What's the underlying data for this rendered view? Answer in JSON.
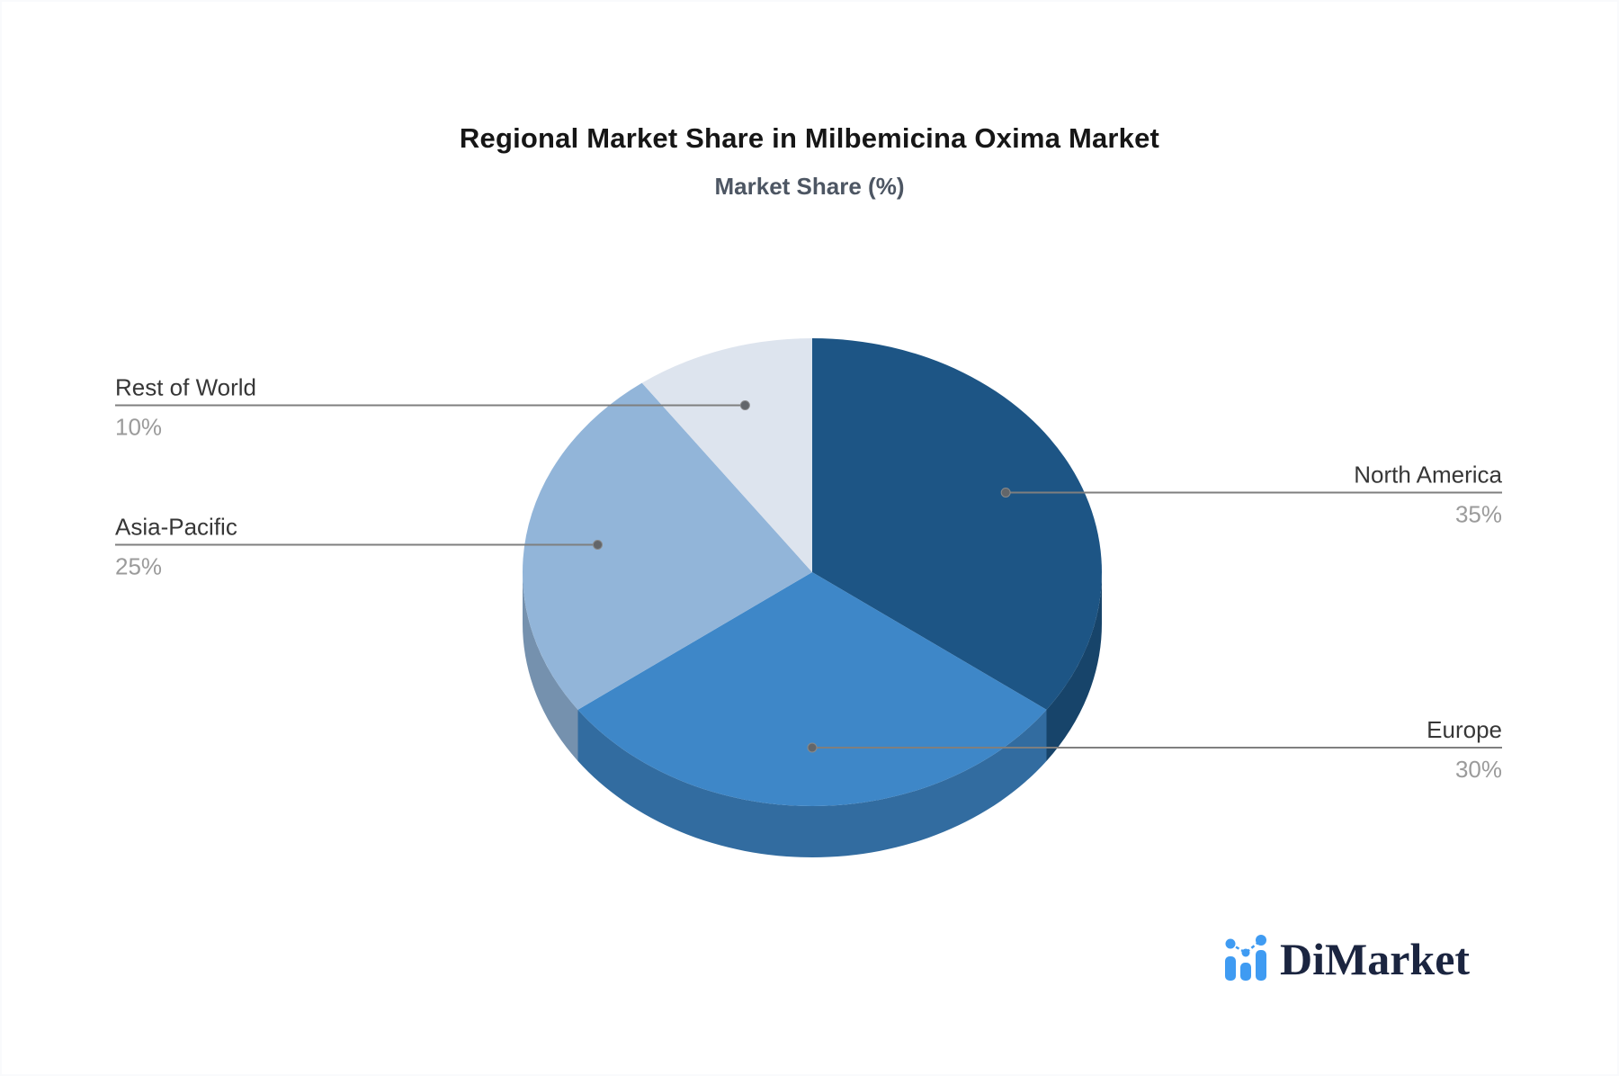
{
  "header": {
    "title": "Regional Market Share in Milbemicina Oxima Market",
    "subtitle": "Market Share (%)"
  },
  "chart_data": {
    "type": "pie",
    "style": "3d-pie",
    "title": "Regional Market Share in Milbemicina Oxima Market",
    "subtitle": "Market Share (%)",
    "unit": "%",
    "start_angle_deg": 0,
    "direction": "clockwise",
    "labels": [
      "North America",
      "Europe",
      "Asia-Pacific",
      "Rest of World"
    ],
    "values": [
      35,
      30,
      25,
      10
    ],
    "colors": [
      "#1d5585",
      "#3e87c8",
      "#92b5d9",
      "#dde4ee"
    ],
    "legend_position": "callout-labels"
  },
  "callouts": [
    {
      "name": "North America",
      "pct": "35%",
      "side": "right"
    },
    {
      "name": "Europe",
      "pct": "30%",
      "side": "right"
    },
    {
      "name": "Asia-Pacific",
      "pct": "25%",
      "side": "left"
    },
    {
      "name": "Rest of World",
      "pct": "10%",
      "side": "left"
    }
  ],
  "ui_colors": {
    "title": "#161616",
    "subtitle": "#4d5663",
    "label_text": "#373737",
    "pct_text": "#9b9b9b",
    "leader_line": "#7f7f7f",
    "dot": "#63666a",
    "background": "#ffffff"
  },
  "brand": {
    "name": "DiMarket",
    "icon": "bar-line-chart-icon",
    "icon_color": "#3f9bf2",
    "text_color": "#1b2540"
  }
}
